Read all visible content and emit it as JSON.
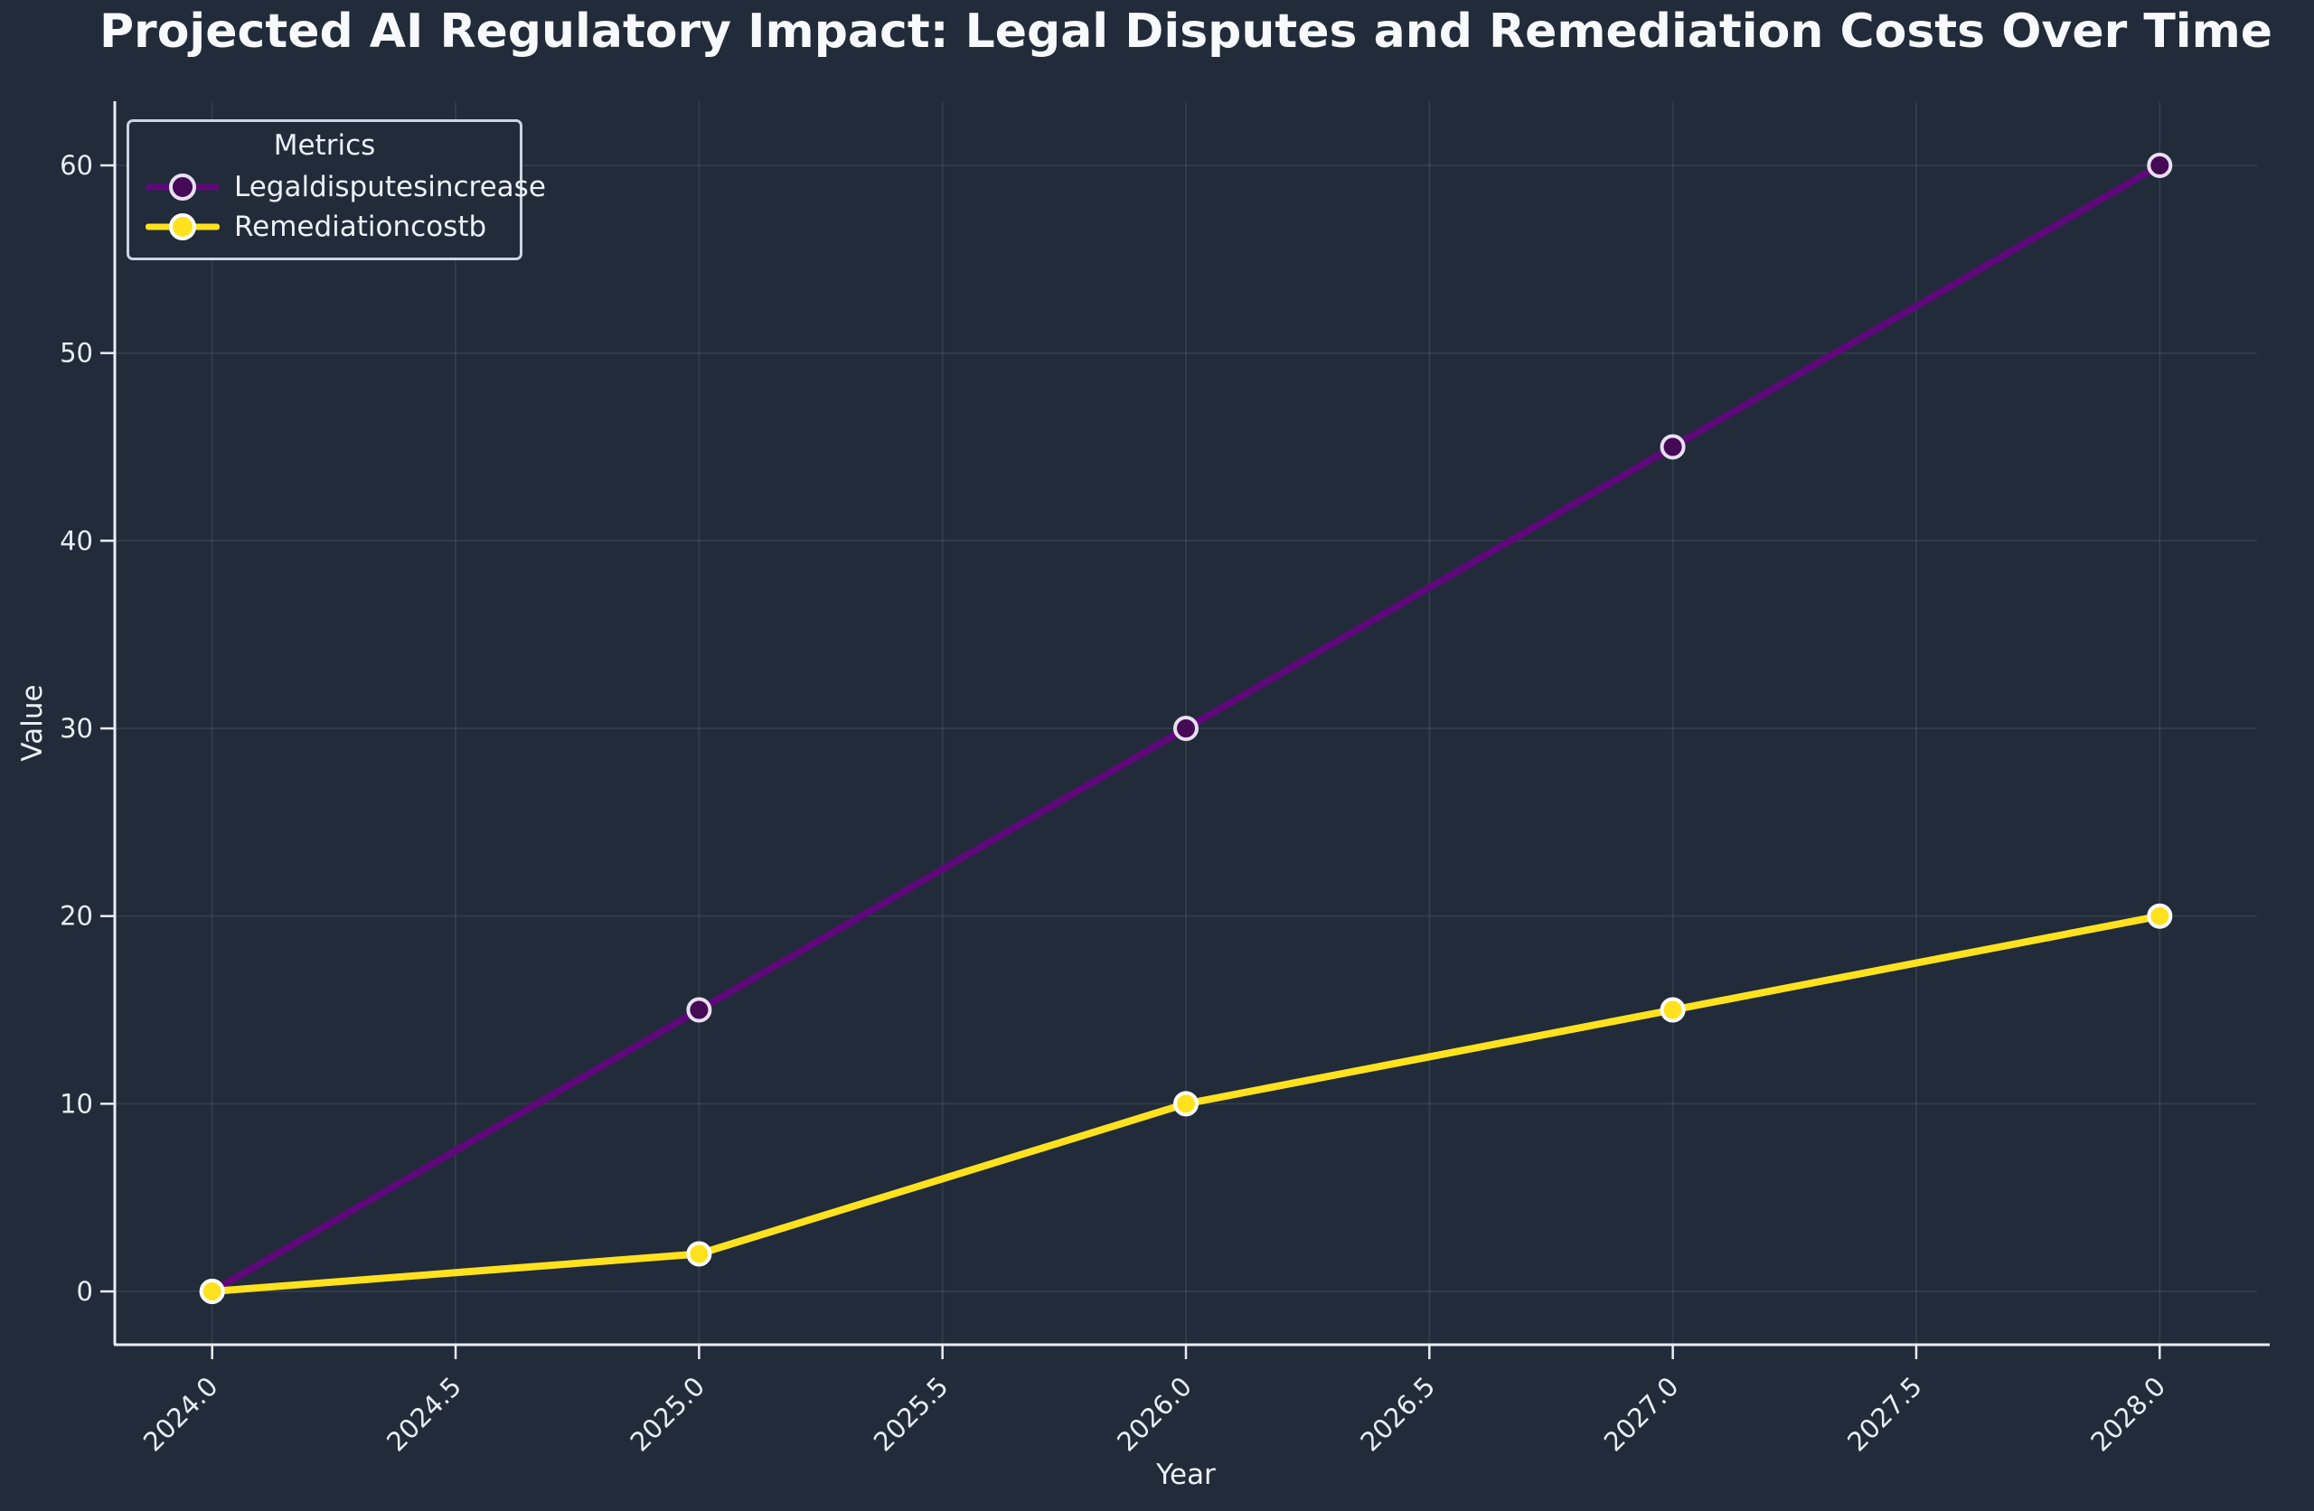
{
  "title": "Projected AI Regulatory Impact: Legal Disputes and Remediation Costs Over Time",
  "colors": {
    "background": "#212B39",
    "axis": "#E9EEF6",
    "tick_text": "#E8EDF4",
    "grid": "rgba(190,205,225,0.10)",
    "legend_border": "#CBD4E0",
    "purple_series": "#5E0979",
    "yellow_series": "#FFE21D"
  },
  "chart_data": {
    "type": "line",
    "title": "Projected AI Regulatory Impact: Legal Disputes and Remediation Costs Over Time",
    "xlabel": "Year",
    "ylabel": "Value",
    "legend_title": "Metrics",
    "legend_position": "upper left",
    "grid": true,
    "x": [
      2024,
      2025,
      2026,
      2027,
      2028
    ],
    "series": [
      {
        "name": "Legaldisputesincrease",
        "values": [
          0,
          15,
          30,
          45,
          60
        ],
        "color": "#5E0979",
        "marker": "open-circle",
        "marker_fill": "#440A55",
        "marker_edge": "#E9DFF2"
      },
      {
        "name": "Remediationcostb",
        "values": [
          0,
          2,
          10,
          15,
          20
        ],
        "color": "#FFE21D",
        "marker": "filled-circle",
        "marker_fill": "#FFE21D",
        "marker_edge": "#FFFFFF"
      }
    ],
    "xlim": [
      2023.8,
      2028.2
    ],
    "ylim": [
      -2.84,
      63.42
    ],
    "x_tick_values": [
      2024.0,
      2024.5,
      2025.0,
      2025.5,
      2026.0,
      2026.5,
      2027.0,
      2027.5,
      2028.0
    ],
    "x_tick_labels": [
      "2024.0",
      "2024.5",
      "2025.0",
      "2025.5",
      "2026.0",
      "2026.5",
      "2027.0",
      "2027.5",
      "2028.0"
    ],
    "y_tick_values": [
      0,
      10,
      20,
      30,
      40,
      50,
      60
    ],
    "y_tick_labels": [
      "0",
      "10",
      "20",
      "30",
      "40",
      "50",
      "60"
    ]
  }
}
